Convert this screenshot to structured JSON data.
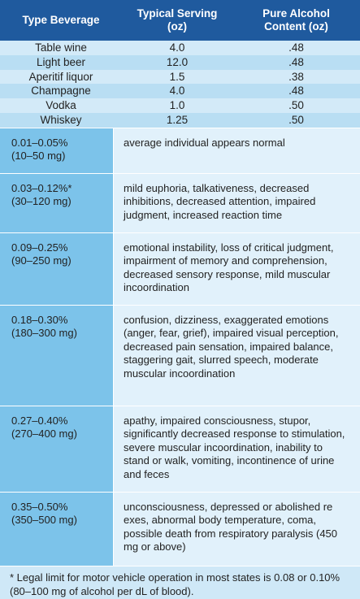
{
  "beverage_table": {
    "columns": [
      "Type Beverage",
      "Typical Serving (oz)",
      "Pure Alcohol Content (oz)"
    ],
    "rows": [
      [
        "Table wine",
        "4.0",
        ".48"
      ],
      [
        "Light beer",
        "12.0",
        ".48"
      ],
      [
        "Aperitif liquor",
        "1.5",
        ".38"
      ],
      [
        "Champagne",
        "4.0",
        ".48"
      ],
      [
        "Vodka",
        "1.0",
        ".50"
      ],
      [
        "Whiskey",
        "1.25",
        ".50"
      ]
    ]
  },
  "bac_table": {
    "rows": [
      {
        "level": "0.01–0.05%",
        "amount": "(10–50 mg)",
        "effects": "average individual appears normal"
      },
      {
        "level": "0.03–0.12%*",
        "amount": "(30–120 mg)",
        "effects": "mild euphoria, talkativeness, decreased inhibitions, decreased attention, impaired judgment, increased reaction time"
      },
      {
        "level": "0.09–0.25%",
        "amount": "(90–250 mg)",
        "effects": "emotional instability, loss of critical judgment, impairment of memory and comprehension, decreased sensory response, mild muscular incoordination"
      },
      {
        "level": "0.18–0.30%",
        "amount": "(180–300 mg)",
        "effects": "confusion, dizziness, exaggerated emotions (anger, fear, grief), impaired visual perception, decreased pain sensation, impaired balance, staggering gait, slurred speech, moderate muscular incoordination"
      },
      {
        "level": "0.27–0.40%",
        "amount": "(270–400 mg)",
        "effects": "apathy, impaired consciousness, stupor, significantly decreased response to stimulation, severe muscular incoordination, inability to stand or walk, vomiting, incontinence of urine and feces"
      },
      {
        "level": "0.35–0.50%",
        "amount": "(350–500 mg)",
        "effects": "unconsciousness, depressed or abolished re exes, abnormal body temperature, coma, possible death from respiratory paralysis (450 mg or above)"
      }
    ]
  },
  "footnote": "* Legal limit for motor vehicle operation in most states is 0.08 or 0.10% (80–100 mg of alcohol per dL of blood)."
}
